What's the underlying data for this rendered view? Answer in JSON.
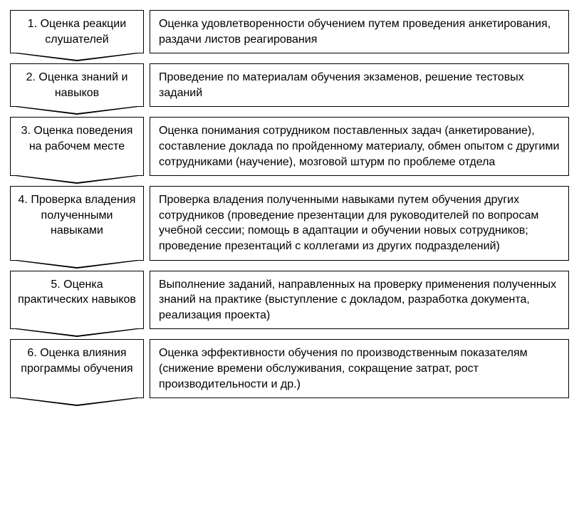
{
  "rows": [
    {
      "left": "1. Оценка реакции слушателей",
      "right": "Оценка удовлетворенности обучением путем проведения анкетирования, раздачи листов реагирования"
    },
    {
      "left": "2. Оценка знаний и навыков",
      "right": "Проведение по материалам обучения экзаменов, решение тестовых заданий"
    },
    {
      "left": "3. Оценка поведения на рабочем месте",
      "right": "Оценка понимания сотрудником поставленных задач (анкетирование), составление доклада по пройденному материалу, обмен опытом с другими сотрудниками (научение), мозговой штурм по проблеме отдела"
    },
    {
      "left": "4. Проверка владения полученными навыками",
      "right": "Проверка владения полученными навыками путем обучения других сотрудников (проведение презентации для руководителей по вопросам учебной сессии; помощь в адаптации и обучении новых сотрудников; проведение презентаций с коллегами из других подразделений)"
    },
    {
      "left": "5. Оценка практических навыков",
      "right": "Выполнение заданий, направленных на проверку применения полученных знаний на практике (выступление с докладом, разработка документа, реализация проекта)"
    },
    {
      "left": "6. Оценка влияния программы обучения",
      "right": "Оценка эффективности обучения по производственным показателям (снижение времени обслуживания, сокращение затрат, рост производительности и др.)"
    }
  ],
  "style": {
    "background_color": "#ffffff",
    "border_color": "#000000",
    "text_color": "#000000",
    "font_size": 16,
    "left_box_width": 188,
    "border_width": 1.5,
    "row_gap": 14,
    "col_gap": 8,
    "left_align": "center",
    "right_align": "left"
  }
}
